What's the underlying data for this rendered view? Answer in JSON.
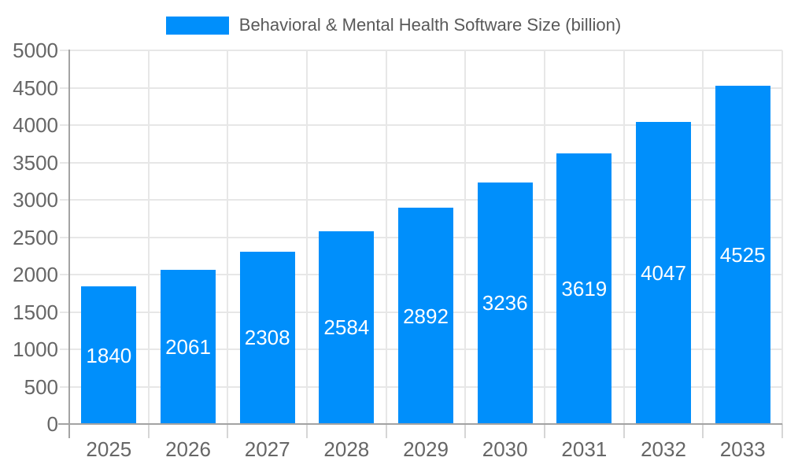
{
  "chart_data": {
    "type": "bar",
    "title": "Behavioral & Mental Health Software Size (billion)",
    "categories": [
      "2025",
      "2026",
      "2027",
      "2028",
      "2029",
      "2030",
      "2031",
      "2032",
      "2033"
    ],
    "values": [
      1840,
      2061,
      2308,
      2584,
      2892,
      3236,
      3619,
      4047,
      4525
    ],
    "series": [
      {
        "name": "Behavioral & Mental Health Software Size (billion)",
        "values": [
          1840,
          2061,
          2308,
          2584,
          2892,
          3236,
          3619,
          4047,
          4525
        ]
      }
    ],
    "xlabel": "",
    "ylabel": "",
    "ylim": [
      0,
      5000
    ],
    "ytick_step": 500,
    "ytick_labels": [
      "0",
      "500",
      "1000",
      "1500",
      "2000",
      "2500",
      "3000",
      "3500",
      "4000",
      "4500",
      "5000"
    ],
    "grid": true,
    "legend_position": "top",
    "data_label_position": "inside-center",
    "colors": {
      "bar": "#008FFB",
      "value_label": "#ffffff",
      "axis_label": "#666666",
      "legend_text": "#595959",
      "gridline": "#e7e7e7",
      "tick": "#d6d6d6",
      "axis_line": "#a3a3a3"
    }
  }
}
